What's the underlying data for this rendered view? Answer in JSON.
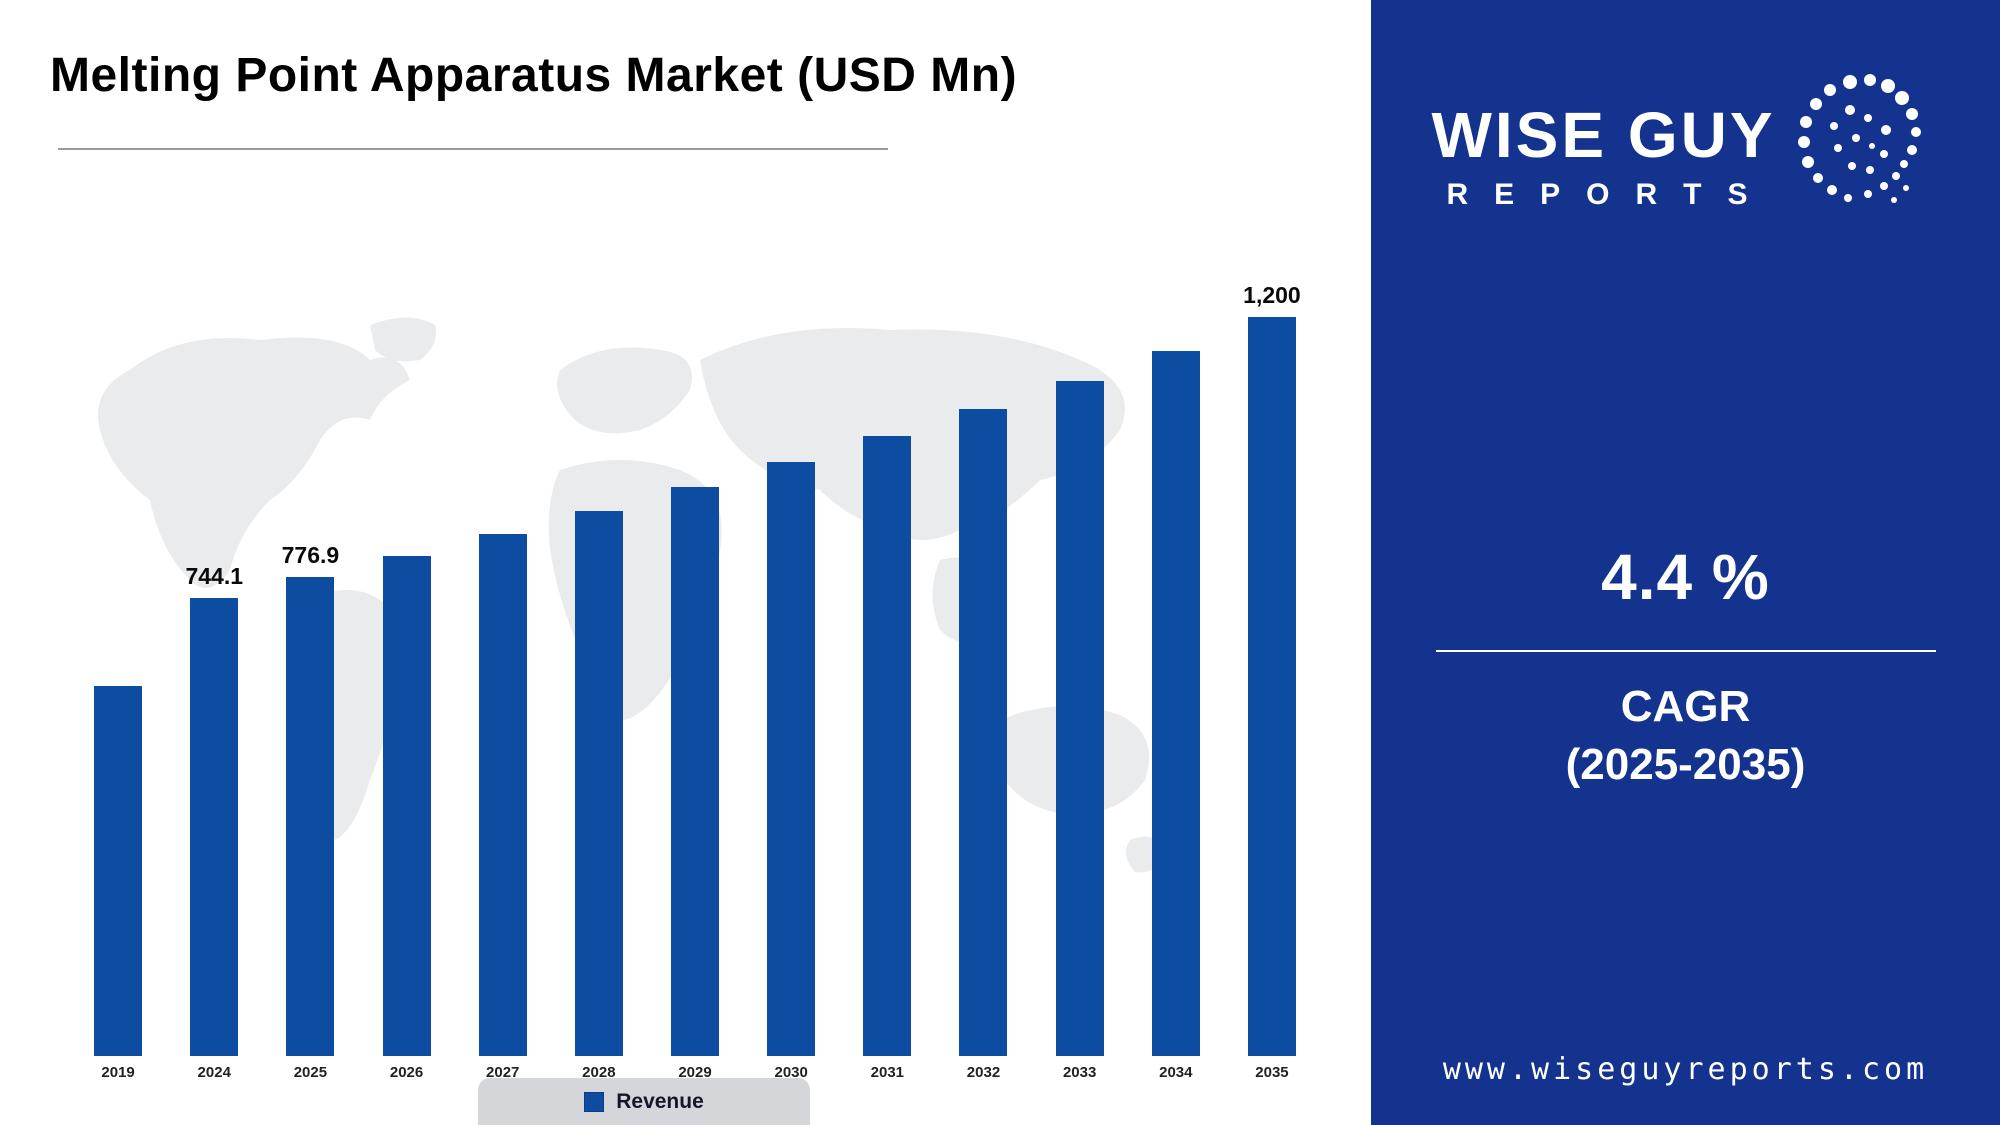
{
  "title": "Melting Point Apparatus Market (USD Mn)",
  "chart_data": {
    "type": "bar",
    "title": "Melting Point Apparatus Market (USD Mn)",
    "categories": [
      "2019",
      "2024",
      "2025",
      "2026",
      "2027",
      "2028",
      "2029",
      "2030",
      "2031",
      "2032",
      "2033",
      "2034",
      "2035"
    ],
    "values": [
      600,
      744.1,
      776.9,
      811.1,
      846.8,
      884.1,
      923.0,
      963.6,
      1006.0,
      1050.3,
      1096.5,
      1144.7,
      1200
    ],
    "value_labels": [
      "",
      "744.1",
      "776.9",
      "",
      "",
      "",
      "",
      "",
      "",
      "",
      "",
      "",
      "1,200"
    ],
    "xlabel": "",
    "ylabel": "",
    "ylim": [
      0,
      1250
    ],
    "grid": false,
    "bar_color": "#0c4da2",
    "legend_position": "bottom",
    "legend": [
      {
        "label": "Revenue",
        "color": "#0c4da2"
      }
    ]
  },
  "sidebar": {
    "background_color": "#14338e",
    "logo_line1": "WISE GUY",
    "logo_line2": "REPORTS",
    "cagr_value": "4.4 %",
    "cagr_label_line1": "CAGR",
    "cagr_label_line2": "(2025-2035)",
    "website": "www.wiseguyreports.com"
  }
}
